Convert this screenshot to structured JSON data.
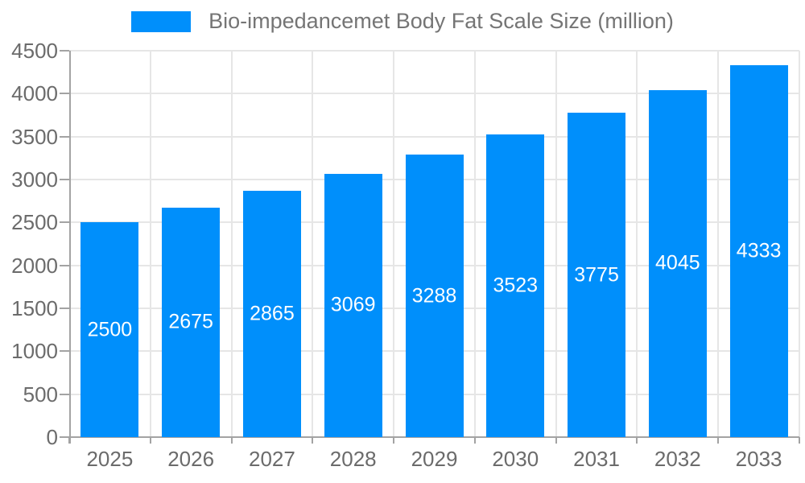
{
  "chart_data": {
    "type": "bar",
    "title": "Bio-impedancemet Body Fat Scale Size (million)",
    "series": [
      {
        "name": "Bio-impedancemet Body Fat Scale Size (million)",
        "values": [
          2500,
          2675,
          2865,
          3069,
          3288,
          3523,
          3775,
          4045,
          4333
        ]
      }
    ],
    "categories": [
      "2025",
      "2026",
      "2027",
      "2028",
      "2029",
      "2030",
      "2031",
      "2032",
      "2033"
    ],
    "values": [
      2500,
      2675,
      2865,
      3069,
      3288,
      3523,
      3775,
      4045,
      4333
    ],
    "xlabel": "",
    "ylabel": "",
    "ylim": [
      0,
      4500
    ],
    "ytick_step": 500,
    "yticks": [
      0,
      500,
      1000,
      1500,
      2000,
      2500,
      3000,
      3500,
      4000,
      4500
    ],
    "grid": "both",
    "legend_position": "top",
    "value_label_style": "white text centered inside bars",
    "colors": {
      "bar": "#008ffb",
      "grid": "#e6e6e6",
      "axis": "#a3a3a3",
      "axis_text": "#6b6b6b",
      "title_text": "#757575",
      "value_text": "#ffffff",
      "background": "#ffffff"
    }
  }
}
